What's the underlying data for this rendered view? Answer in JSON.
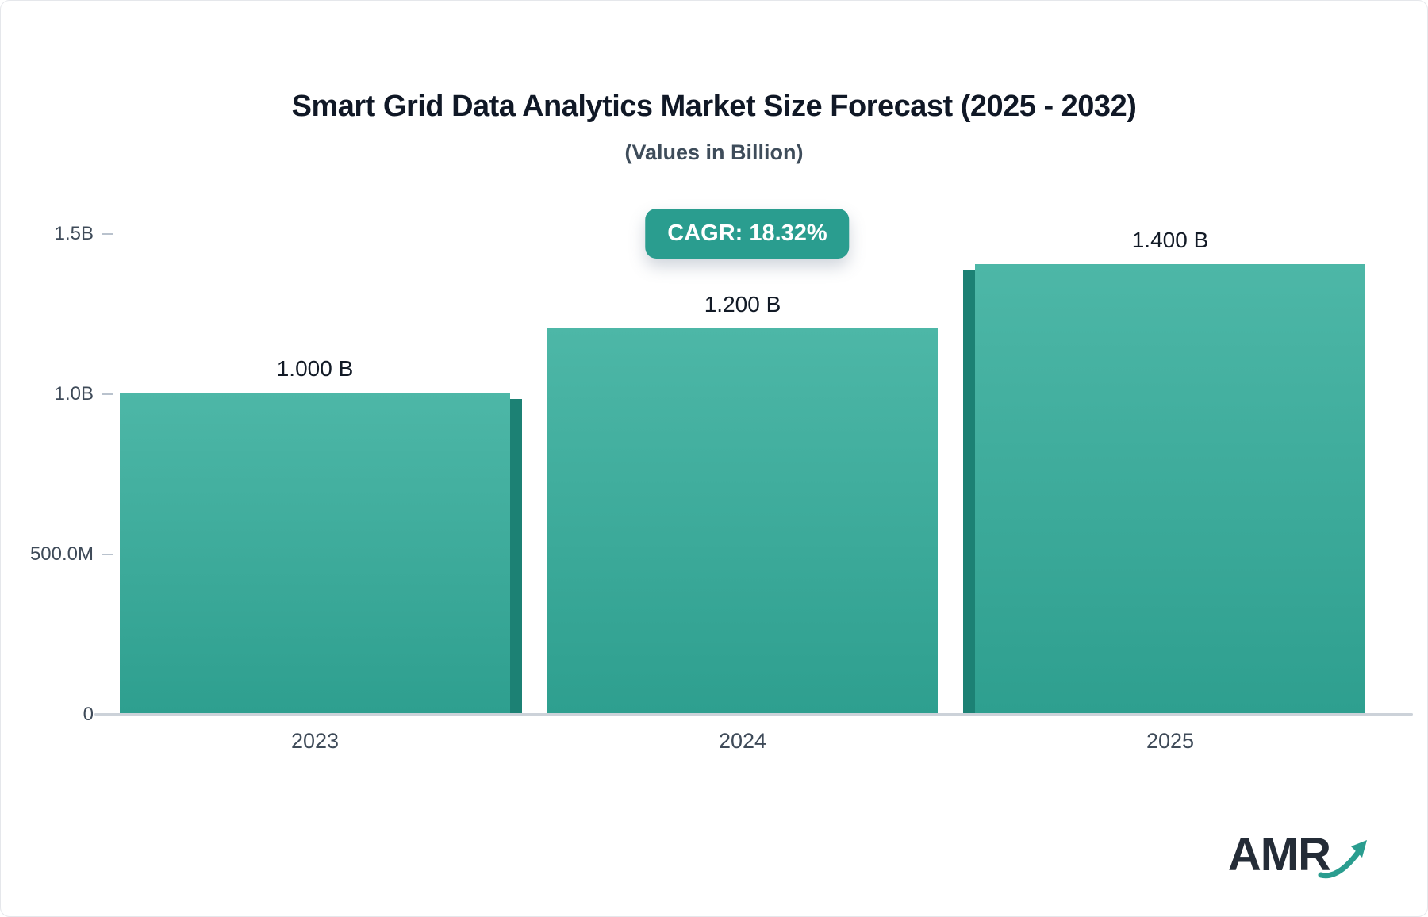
{
  "page": {
    "logo_text": "AMR"
  },
  "chart_data": {
    "type": "bar",
    "title": "Smart Grid Data Analytics Market Size Forecast (2025 - 2032)",
    "subtitle": "(Values in Billion)",
    "annotation": "CAGR: 18.32%",
    "categories": [
      "2023",
      "2024",
      "2025"
    ],
    "values": [
      1.0,
      1.2,
      1.4
    ],
    "value_labels": [
      "1.000 B",
      "1.200 B",
      "1.400 B"
    ],
    "unit": "Billion",
    "ylim": [
      0,
      1.5
    ],
    "yticks": [
      {
        "value": 1.5,
        "label": "1.5B"
      },
      {
        "value": 1.0,
        "label": "1.0B"
      },
      {
        "value": 0.5,
        "label": "500.0M"
      },
      {
        "value": 0.0,
        "label": "0"
      }
    ],
    "xlabel": "",
    "ylabel": "",
    "legend": "none",
    "grid": "off",
    "colors": {
      "bar_gradient_top": "#4db7a7",
      "bar_gradient_bottom": "#2e9f8f",
      "bar_side_shade": "#1c8174",
      "badge_background": "#2a9d8f",
      "badge_text": "#ffffff",
      "axis_text": "#3f4b59",
      "title_text": "#101826",
      "logo_arrow": "#2a9d8f"
    }
  }
}
